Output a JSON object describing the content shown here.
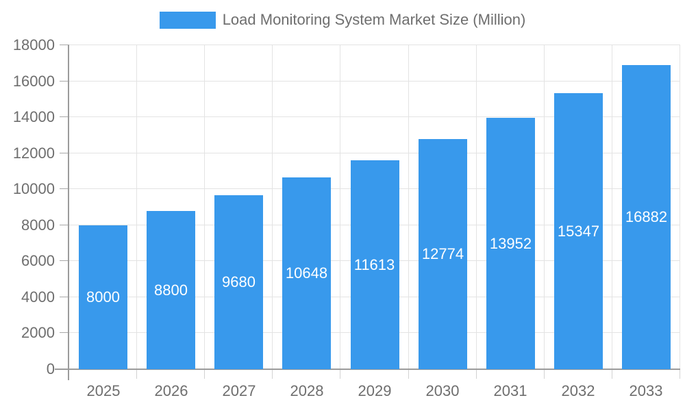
{
  "legend": {
    "label": "Load Monitoring System Market Size (Million)"
  },
  "chart_data": {
    "type": "bar",
    "title": "",
    "xlabel": "",
    "ylabel": "",
    "categories": [
      "2025",
      "2026",
      "2027",
      "2028",
      "2029",
      "2030",
      "2031",
      "2032",
      "2033"
    ],
    "series": [
      {
        "name": "Load Monitoring System Market Size (Million)",
        "values": [
          8000,
          8800,
          9680,
          10648,
          11613,
          12774,
          13952,
          15347,
          16882
        ]
      }
    ],
    "values": [
      8000,
      8800,
      9680,
      10648,
      11613,
      12774,
      13952,
      15347,
      16882
    ],
    "bar_value_labels": [
      "8000",
      "8800",
      "9680",
      "10648",
      "11613",
      "12774",
      "13952",
      "15347",
      "16882"
    ],
    "ylim": [
      0,
      18000
    ],
    "yticks": [
      0,
      2000,
      4000,
      6000,
      8000,
      10000,
      12000,
      14000,
      16000,
      18000
    ],
    "grid": true,
    "legend_position": "top",
    "bar_label_position": "inside-center"
  },
  "colors": {
    "bar": "#3899EC",
    "bar_label_text": "#ffffff",
    "axis_text": "#6e6e6e",
    "grid_line": "#e3e3e3",
    "axis_line": "#9b9b9b",
    "y_tick": "#a8a8a8",
    "x_tick": "#d2d2d2",
    "background": "#ffffff"
  }
}
